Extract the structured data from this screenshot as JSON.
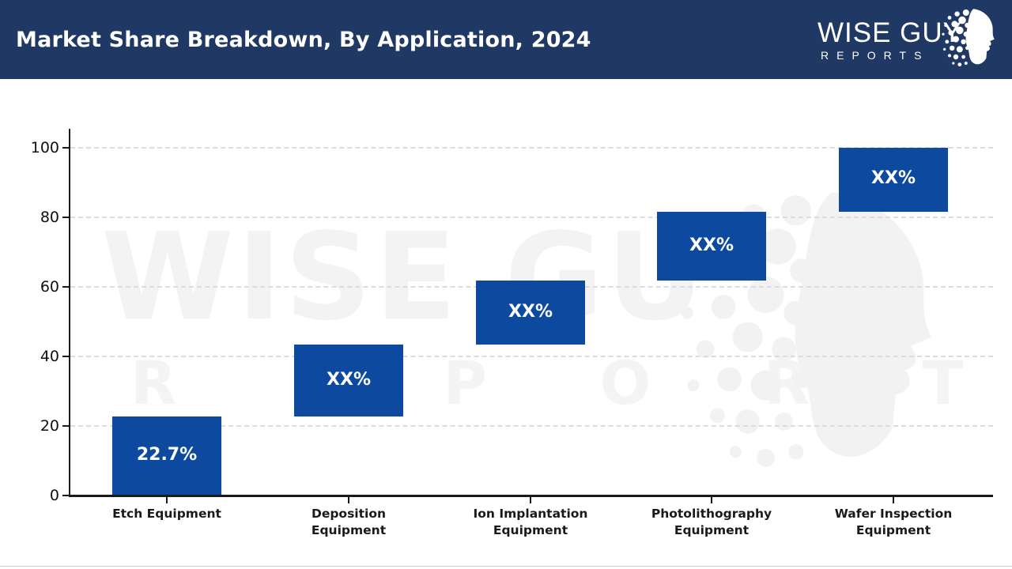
{
  "header": {
    "background": "#203864",
    "title": "Market Share Breakdown, By Application, 2024",
    "logo": {
      "line1": "WISE GUY",
      "line2": "REPORTS"
    }
  },
  "watermark": {
    "line1": "WISE GU",
    "line2": "R E P O R T S"
  },
  "chart_data": {
    "type": "bar",
    "subtype": "floating-waterfall",
    "title": "Market Share Breakdown, By Application, 2024",
    "categories": [
      "Etch Equipment",
      "Deposition Equipment",
      "Ion Implantation Equipment",
      "Photolithography Equipment",
      "Wafer Inspection Equipment"
    ],
    "category_lines": [
      [
        "Etch Equipment"
      ],
      [
        "Deposition",
        "Equipment"
      ],
      [
        "Ion Implantation",
        "Equipment"
      ],
      [
        "Photolithography",
        "Equipment"
      ],
      [
        "Wafer Inspection",
        "Equipment"
      ]
    ],
    "segments": [
      {
        "category": "Etch Equipment",
        "start": 0,
        "end": 22.7,
        "label": "22.7%"
      },
      {
        "category": "Deposition Equipment",
        "start": 22.7,
        "end": 43.4,
        "label": "XX%"
      },
      {
        "category": "Ion Implantation Equipment",
        "start": 43.4,
        "end": 61.8,
        "label": "XX%"
      },
      {
        "category": "Photolithography Equipment",
        "start": 61.8,
        "end": 81.6,
        "label": "XX%"
      },
      {
        "category": "Wafer Inspection Equipment",
        "start": 81.6,
        "end": 100,
        "label": "XX%"
      }
    ],
    "ylim": [
      0,
      100
    ],
    "yticks": [
      0,
      20,
      40,
      60,
      80,
      100
    ],
    "grid": {
      "horizontal": true,
      "style": "dashed",
      "color": "#dcdcdc"
    },
    "legend": "none",
    "bar_color": "#0d4a9f",
    "bar_label_color": "#ffffff",
    "axis_color": "#1a1a1a",
    "tick_label_color": "#111111"
  }
}
